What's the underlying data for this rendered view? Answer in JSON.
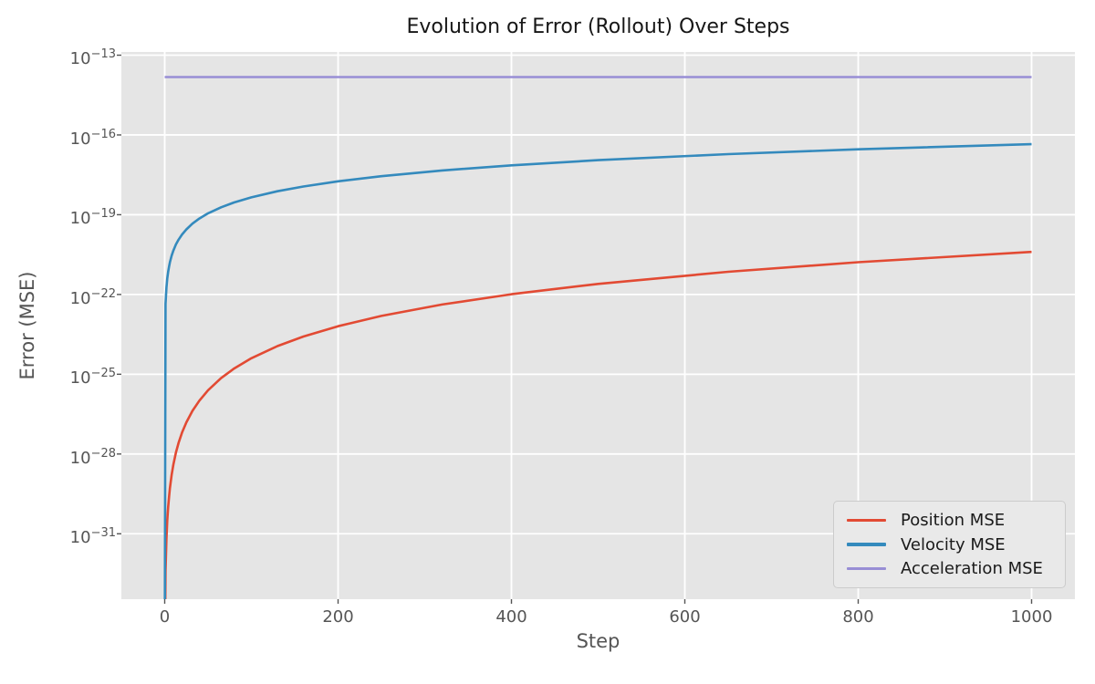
{
  "chart_data": {
    "type": "line",
    "title": "Evolution of Error (Rollout) Over Steps",
    "xlabel": "Step",
    "ylabel": "Error (MSE)",
    "y_scale": "log",
    "grid": true,
    "legend_position": "lower right",
    "plot_bg_color": "#e5e5e5",
    "grid_color": "#ffffff",
    "tick_color": "#555555",
    "x_ticks": [
      0,
      200,
      400,
      600,
      800,
      1000
    ],
    "y_tick_exponents": [
      -13,
      -16,
      -19,
      -22,
      -25,
      -28,
      -31
    ],
    "xlim": [
      -50,
      1050
    ],
    "ylim_log10": [
      -33.46,
      -12.88
    ],
    "series": [
      {
        "name": "Position MSE",
        "color": "#e24a33",
        "x": [
          0,
          1,
          2,
          3,
          4,
          5,
          6,
          8,
          10,
          13,
          16,
          20,
          25,
          32,
          40,
          50,
          65,
          80,
          100,
          130,
          160,
          200,
          250,
          320,
          400,
          500,
          650,
          800,
          1000
        ],
        "y": [
          0,
          4e-33,
          6.4e-32,
          3.24e-31,
          1.02e-30,
          2.5e-30,
          5.18e-30,
          1.64e-29,
          4e-29,
          1.14e-28,
          2.62e-28,
          6.4e-28,
          1.56e-27,
          4.19e-27,
          1.02e-26,
          2.5e-26,
          7.14e-26,
          1.64e-25,
          4e-25,
          1.14e-24,
          2.62e-24,
          6.4e-24,
          1.56e-23,
          4.19e-23,
          1.02e-22,
          2.5e-22,
          7.14e-22,
          1.64e-21,
          4e-21
        ]
      },
      {
        "name": "Velocity MSE",
        "color": "#348abd",
        "x": [
          0,
          1,
          2,
          3,
          4,
          5,
          6,
          8,
          10,
          13,
          16,
          20,
          25,
          32,
          40,
          50,
          65,
          80,
          100,
          130,
          160,
          200,
          250,
          320,
          400,
          500,
          650,
          800,
          1000
        ],
        "y": [
          0,
          4.5e-23,
          1.8e-22,
          4.05e-22,
          7.2e-22,
          1.13e-21,
          1.62e-21,
          2.88e-21,
          4.5e-21,
          7.61e-21,
          1.15e-20,
          1.8e-20,
          2.81e-20,
          4.61e-20,
          7.2e-20,
          1.13e-19,
          1.9e-19,
          2.88e-19,
          4.5e-19,
          7.61e-19,
          1.15e-18,
          1.8e-18,
          2.81e-18,
          4.61e-18,
          7.2e-18,
          1.13e-17,
          1.9e-17,
          2.88e-17,
          4.5e-17
        ]
      },
      {
        "name": "Acceleration MSE",
        "color": "#988ed5",
        "x": [
          0,
          1000
        ],
        "y": [
          1.5e-14,
          1.5e-14
        ]
      }
    ]
  }
}
